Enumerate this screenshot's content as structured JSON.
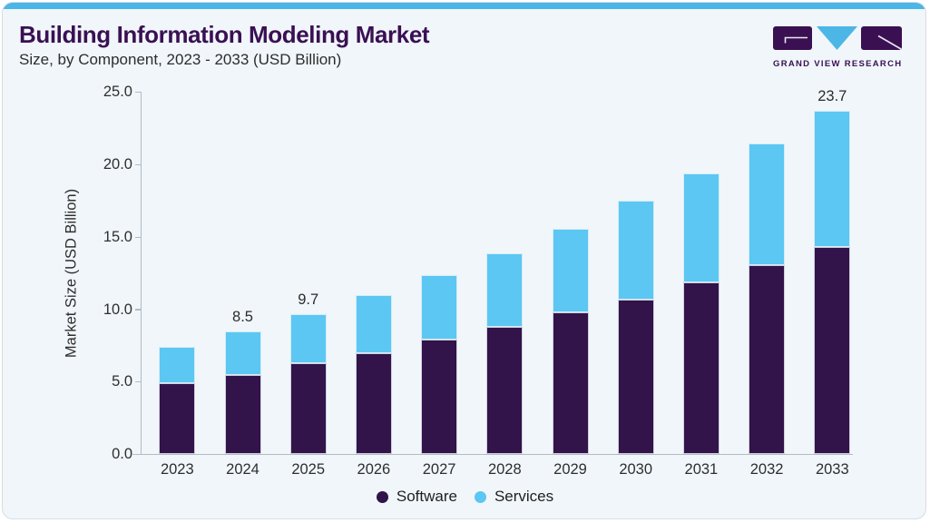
{
  "header": {
    "title": "Building Information Modeling Market",
    "subtitle": "Size, by Component, 2023 - 2033 (USD Billion)"
  },
  "logo": {
    "text": "GRAND VIEW RESEARCH",
    "dark_color": "#3a1053",
    "blue_color": "#4cb6e7"
  },
  "colors": {
    "card_background": "#f0f6fa",
    "top_strip": "#4cb6e7",
    "title_purple": "#3a1053",
    "axis_gray": "#b4bbc2"
  },
  "chart_data": {
    "type": "bar",
    "stacked": true,
    "title": "Building Information Modeling Market",
    "subtitle": "Size, by Component, 2023 - 2033 (USD Billion)",
    "ylabel": "Market Size (USD Billion)",
    "xlabel": "",
    "ylim": [
      0,
      25
    ],
    "grid": false,
    "legend_position": "bottom",
    "ytick_labels": [
      "0.0",
      "5.0",
      "10.0",
      "15.0",
      "20.0",
      "25.0"
    ],
    "categories": [
      "2023",
      "2024",
      "2025",
      "2026",
      "2027",
      "2028",
      "2029",
      "2030",
      "2031",
      "2032",
      "2033"
    ],
    "series": [
      {
        "name": "Software",
        "color": "#32134a",
        "values": [
          4.9,
          5.5,
          6.3,
          7.0,
          7.9,
          8.8,
          9.8,
          10.7,
          11.9,
          13.1,
          14.3
        ]
      },
      {
        "name": "Services",
        "color": "#5bc7f2",
        "values": [
          2.5,
          3.0,
          3.4,
          4.0,
          4.5,
          5.1,
          5.8,
          6.8,
          7.5,
          8.4,
          9.4
        ]
      }
    ],
    "value_labels": {
      "2024": "8.5",
      "2025": "9.7",
      "2033": "23.7"
    }
  }
}
